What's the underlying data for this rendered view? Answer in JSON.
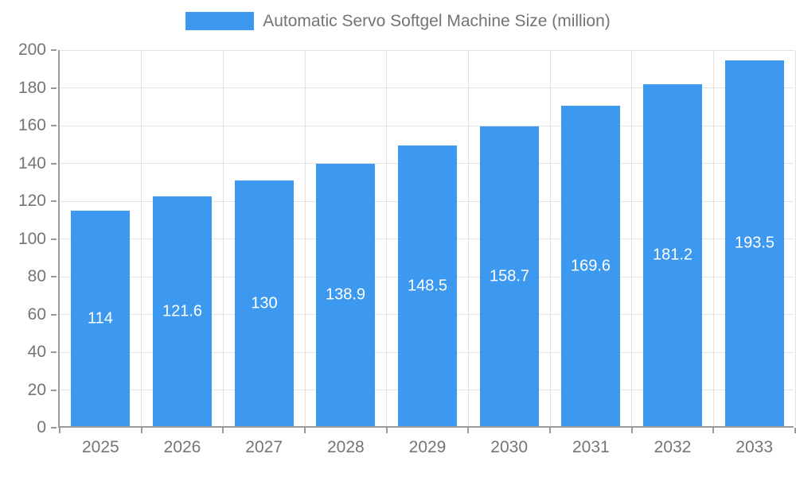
{
  "chart_data": {
    "type": "bar",
    "title": "Automatic Servo Softgel Machine Size (million)",
    "legend_position": "top",
    "categories": [
      "2025",
      "2026",
      "2027",
      "2028",
      "2029",
      "2030",
      "2031",
      "2032",
      "2033"
    ],
    "series": [
      {
        "name": "Automatic Servo Softgel Machine Size (million)",
        "values": [
          114,
          121.6,
          130,
          138.9,
          148.5,
          158.7,
          169.6,
          181.2,
          193.5
        ]
      }
    ],
    "data_labels": [
      "114",
      "121.6",
      "130",
      "138.9",
      "148.5",
      "158.7",
      "169.6",
      "181.2",
      "193.5"
    ],
    "xlabel": "",
    "ylabel": "",
    "ylim": [
      0,
      200
    ],
    "ytick_step": 20,
    "ytick_labels": [
      "0",
      "20",
      "40",
      "60",
      "80",
      "100",
      "120",
      "140",
      "160",
      "180",
      "200"
    ],
    "grid": true,
    "colors": {
      "bar": "#3c99ef",
      "axis_line": "#9a9a9a",
      "gridline": "#e2e2e2",
      "axis_text": "#757575",
      "value_label_text": "#ffffff",
      "background": "#ffffff"
    }
  }
}
